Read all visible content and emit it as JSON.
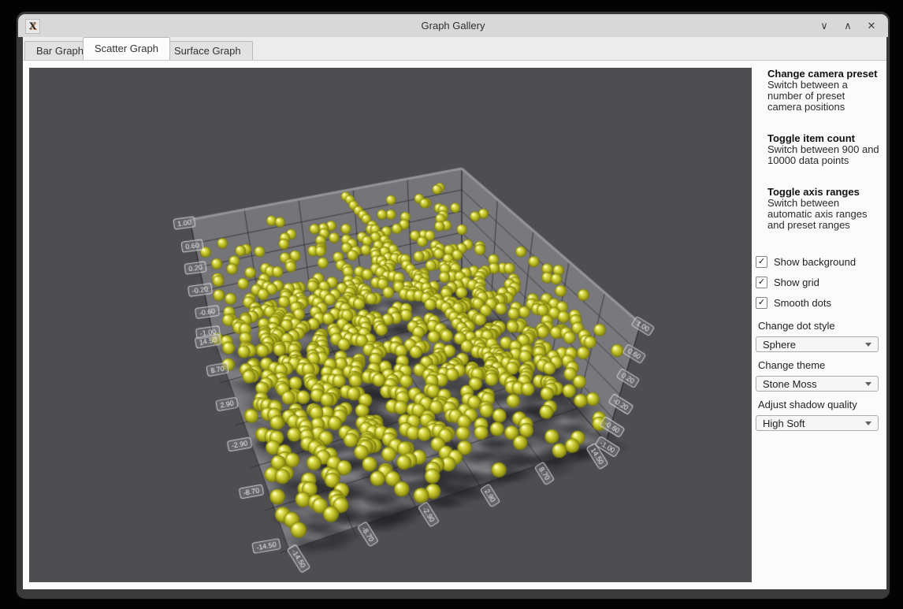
{
  "window": {
    "title": "Graph Gallery",
    "app_icon_glyph": "X",
    "controls": {
      "minimize": "∨",
      "maximize": "∧",
      "close": "✕"
    }
  },
  "tabs": [
    {
      "label": "Bar Graph",
      "active": false
    },
    {
      "label": "Scatter Graph",
      "active": true
    },
    {
      "label": "Surface Graph",
      "active": false
    }
  ],
  "panel": {
    "commands": [
      {
        "title": "Change camera preset",
        "description": "Switch between a number of preset camera positions"
      },
      {
        "title": "Toggle item count",
        "description": "Switch between 900 and 10000 data points"
      },
      {
        "title": "Toggle axis ranges",
        "description": "Switch between automatic axis ranges and preset ranges"
      }
    ],
    "checkboxes": [
      {
        "label": "Show background",
        "checked": true,
        "glyph": "✓"
      },
      {
        "label": "Show grid",
        "checked": true,
        "glyph": "✓"
      },
      {
        "label": "Smooth dots",
        "checked": true,
        "glyph": "✓"
      }
    ],
    "selects": [
      {
        "label": "Change dot style",
        "value": "Sphere"
      },
      {
        "label": "Change theme",
        "value": "Stone Moss"
      },
      {
        "label": "Adjust shadow quality",
        "value": "High Soft"
      }
    ]
  },
  "chart_data": {
    "type": "scatter",
    "projection": "3d",
    "theme": "Stone Moss",
    "dot_style": "Sphere",
    "shadow_quality": "High Soft",
    "point_count": 900,
    "show_background": true,
    "show_grid": true,
    "smooth_dots": true,
    "x_range": [
      -14.5,
      14.5
    ],
    "z_range": [
      -14.5,
      14.5
    ],
    "y_range": [
      -1,
      1
    ],
    "x_ticks": [
      "14.50",
      "8.70",
      "2.90",
      "-2.90",
      "-8.70",
      "-14.50"
    ],
    "z_ticks": [
      "-14.50",
      "-8.70",
      "-2.90",
      "2.90",
      "8.70",
      "14.50"
    ],
    "y_ticks": [
      "1.00",
      "0.60",
      "0.20",
      "-0.20",
      "-0.60",
      "-1.00"
    ],
    "colors": {
      "background": "#4e4e51",
      "wall_left": "#747479",
      "wall_right": "#78787d",
      "floor": "#7c7c81",
      "grid": "rgba(44,44,48,0.8)",
      "rim": "#93939a",
      "sphere_highlight": "#fafac0",
      "sphere_mid": "#bcbc2b",
      "sphere_dark": "#70700c",
      "label_text": "#ececee",
      "label_border": "rgba(224,224,228,0.9)",
      "label_fill": "rgba(128,128,133,0.45)",
      "shadow": "rgba(28,28,31,0.30)"
    }
  }
}
